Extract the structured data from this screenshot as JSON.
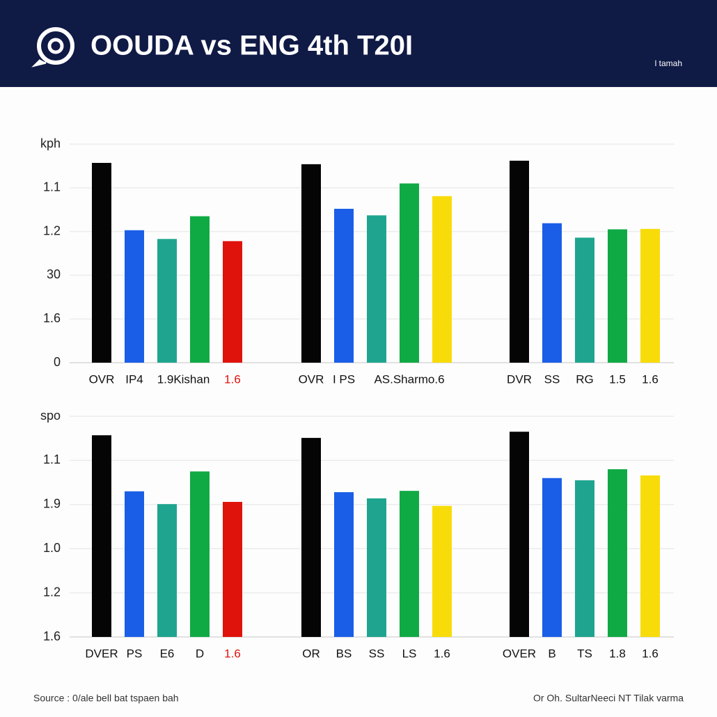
{
  "header": {
    "title": "OOUDA vs ENG 4th T20I",
    "right": "l   tamah"
  },
  "footer": {
    "source": "Source : 0/ale bell bat tspaen bah",
    "credit": "Or Oh. SultarNeeci  NT Tilak varma"
  },
  "chart_data": [
    {
      "type": "bar",
      "categories": [
        "OVR",
        "IP4",
        "1.9Kishan",
        null,
        "1.6"
      ],
      "values": [
        4.57,
        3.03,
        2.83,
        3.35,
        2.78
      ],
      "colors": [
        "#050505",
        "#1a5ee8",
        "#1fa58f",
        "#10aa45",
        "#e0120c"
      ],
      "label_colors": [
        "#111111",
        "#111111",
        "#111111",
        "#111111",
        "#e0120c"
      ],
      "ylim": [
        0,
        5
      ],
      "yticks": [
        {
          "value": 5,
          "label": "kph"
        },
        {
          "value": 4,
          "label": "1.1"
        },
        {
          "value": 3,
          "label": "1.2"
        },
        {
          "value": 2,
          "label": "30"
        },
        {
          "value": 1,
          "label": "1.6"
        },
        0
      ],
      "grid": true
    },
    {
      "type": "bar",
      "categories": [
        "OVR",
        "I PS",
        "AS.Sharmo.6",
        null,
        null
      ],
      "values": [
        4.54,
        3.52,
        3.37,
        4.1,
        3.81
      ],
      "colors": [
        "#050505",
        "#1a5ee8",
        "#1fa58f",
        "#10aa45",
        "#f7dc0a"
      ],
      "label_colors": [
        "#111111",
        "#111111",
        "#111111",
        "#111111",
        "#111111"
      ],
      "ylim": [
        0,
        5
      ]
    },
    {
      "type": "bar",
      "categories": [
        "DVR",
        "SS",
        "RG",
        "1.5",
        "1.6"
      ],
      "values": [
        4.62,
        3.19,
        2.86,
        3.05,
        3.06
      ],
      "colors": [
        "#050505",
        "#1a5ee8",
        "#1fa58f",
        "#10aa45",
        "#f7dc0a"
      ],
      "label_colors": [
        "#111111",
        "#111111",
        "#111111",
        "#111111",
        "#111111"
      ],
      "ylim": [
        0,
        5
      ]
    },
    {
      "type": "bar",
      "categories": [
        "DVER",
        "PS",
        "E6",
        "D",
        "1.6"
      ],
      "values": [
        4.57,
        3.3,
        3.01,
        3.75,
        3.06
      ],
      "colors": [
        "#050505",
        "#1a5ee8",
        "#1fa58f",
        "#10aa45",
        "#e0120c"
      ],
      "label_colors": [
        "#111111",
        "#111111",
        "#111111",
        "#111111",
        "#e0120c"
      ],
      "ylim": [
        0,
        5
      ],
      "yticks": [
        {
          "value": 5,
          "label": "spo"
        },
        {
          "value": 4,
          "label": "1.1"
        },
        {
          "value": 3,
          "label": "1.9"
        },
        {
          "value": 2,
          "label": "1.0"
        },
        {
          "value": 1,
          "label": "1.2"
        },
        {
          "value": 0,
          "label": "1.6"
        }
      ],
      "grid": true
    },
    {
      "type": "bar",
      "categories": [
        "OR",
        "BS",
        "SS",
        "LS",
        "1.6"
      ],
      "values": [
        4.51,
        3.28,
        3.14,
        3.31,
        2.97
      ],
      "colors": [
        "#050505",
        "#1a5ee8",
        "#1fa58f",
        "#10aa45",
        "#f7dc0a"
      ],
      "label_colors": [
        "#111111",
        "#111111",
        "#111111",
        "#111111",
        "#111111"
      ],
      "ylim": [
        0,
        5
      ]
    },
    {
      "type": "bar",
      "categories": [
        "OVER",
        "B",
        "TS",
        "1.8",
        "1.6"
      ],
      "values": [
        4.65,
        3.6,
        3.55,
        3.8,
        3.66
      ],
      "colors": [
        "#050505",
        "#1a5ee8",
        "#1fa58f",
        "#10aa45",
        "#f7dc0a"
      ],
      "label_colors": [
        "#111111",
        "#111111",
        "#111111",
        "#111111",
        "#111111"
      ],
      "ylim": [
        0,
        5
      ]
    }
  ]
}
